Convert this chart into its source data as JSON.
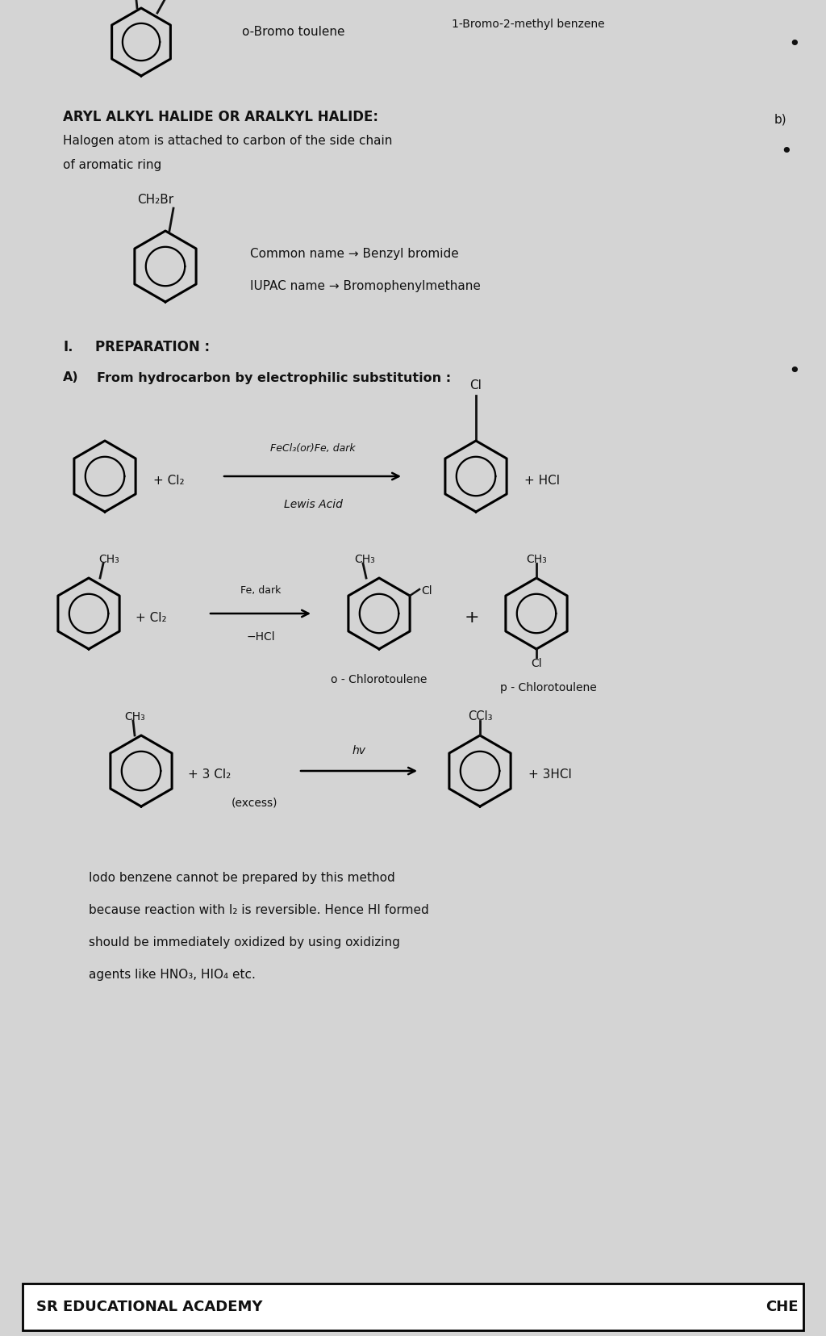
{
  "bg_color": "#d4d4d4",
  "text_color": "#111111",
  "title_top": "o-Bromo toulene",
  "title_top2": "1-Bromo-2-methyl benzene",
  "section_title": "ARYL ALKYL HALIDE OR ARALKYL HALIDE:",
  "section_desc1": "Halogen atom is attached to carbon of the side chain",
  "section_desc2": "of aromatic ring",
  "common_name": "Common name → Benzyl bromide",
  "iupac_name": "IUPAC name → Bromophenylmethane",
  "prep_header": "PREPARATION :",
  "prep_header_num": "I.",
  "prep_subA_num": "A)",
  "prep_subA": "From hydrocarbon by electrophilic substitution :",
  "reaction1_above": "FeCl₃(or)Fe, dark",
  "reaction1_below": "Lewis Acid",
  "reaction1_right": "+ HCl",
  "reaction2_above": "Fe, dark",
  "reaction2_below": "−HCl",
  "label_o_chloro": "o - Chlorotoulene",
  "label_p_chloro": "p - Chlorotoulene",
  "reaction3_arrow": "hv",
  "reaction3_cl2": "+ 3 Cl₂",
  "reaction3_right": "+ 3HCl",
  "reaction3_excess": "(excess)",
  "para_line1": "Iodo benzene cannot be prepared by this method",
  "para_line2": "because reaction with I₂ is reversible. Hence HI formed",
  "para_line3": "should be immediately oxidized by using oxidizing",
  "para_line4": "agents like HNO₃, HIO₄ etc.",
  "footer_left": "SR EDUCATIONAL ACADEMY",
  "footer_right": "CHE"
}
